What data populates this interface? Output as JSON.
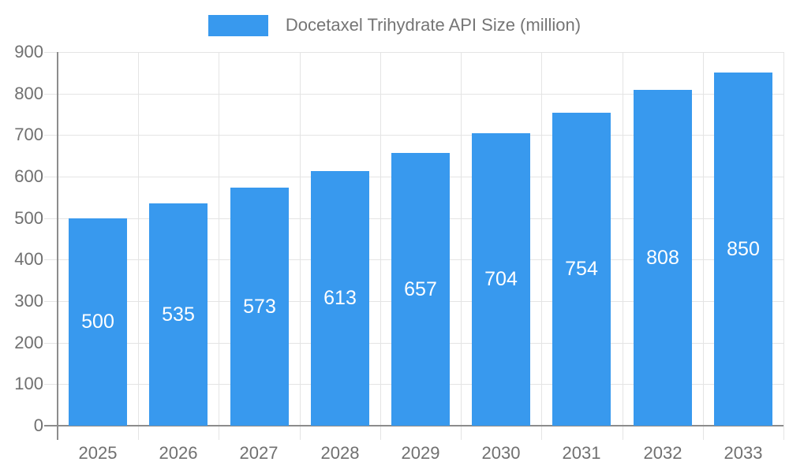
{
  "chart_data": {
    "type": "bar",
    "title": "Docetaxel Trihydrate API Size (million)",
    "categories": [
      "2025",
      "2026",
      "2027",
      "2028",
      "2029",
      "2030",
      "2031",
      "2032",
      "2033"
    ],
    "values": [
      500,
      535,
      573,
      613,
      657,
      704,
      754,
      808,
      850
    ],
    "value_labels": [
      "500",
      "535",
      "573",
      "613",
      "657",
      "704",
      "754",
      "808",
      "850"
    ],
    "ytick_labels": [
      "0",
      "100",
      "200",
      "300",
      "400",
      "500",
      "600",
      "700",
      "800",
      "900"
    ],
    "yticks": [
      0,
      100,
      200,
      300,
      400,
      500,
      600,
      700,
      800,
      900
    ],
    "ylim": [
      0,
      900
    ],
    "xlabel": "",
    "ylabel": "",
    "grid": true,
    "legend_position": "top-center",
    "value_label_position": "inside-center",
    "colors": {
      "bar": "#3899EE",
      "bar_value_text": "#ffffff",
      "grid": "#e4e4e4",
      "axis": "#8c8c8c",
      "tick_text": "#707070",
      "legend_text": "#757575",
      "background": "#ffffff"
    }
  }
}
